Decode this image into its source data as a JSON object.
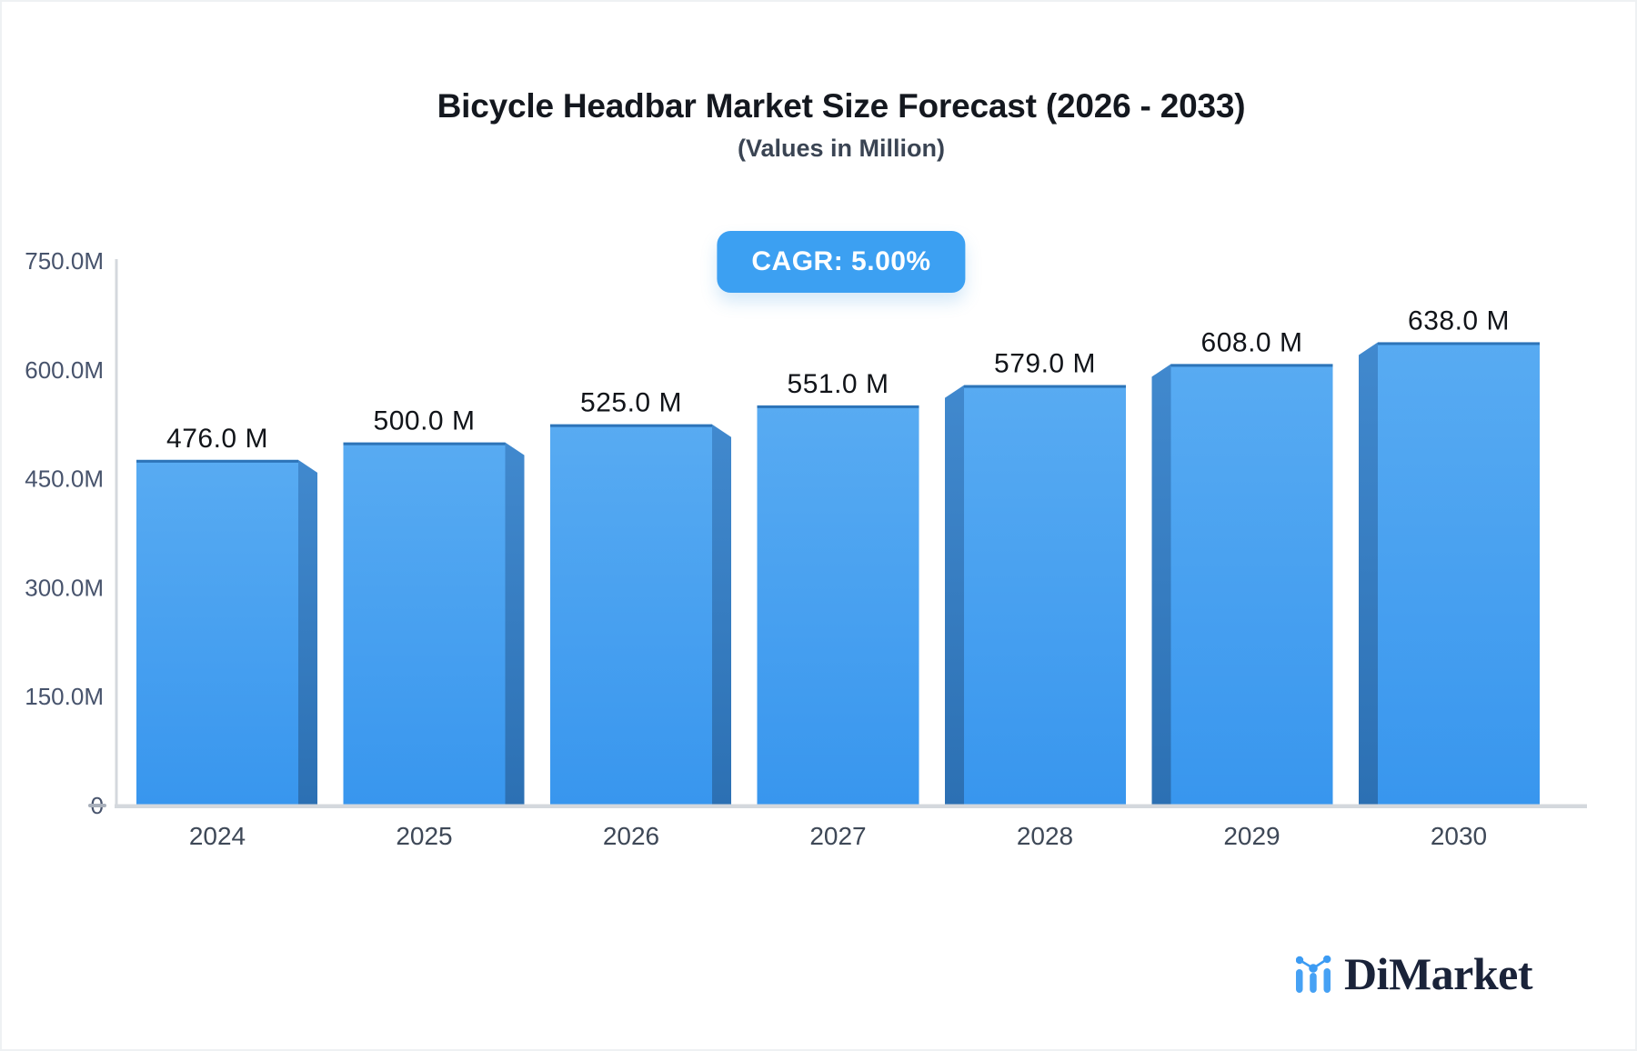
{
  "header": {
    "title": "Bicycle Headbar Market Size Forecast (2026 - 2033)",
    "subtitle": "(Values in Million)",
    "cagr_badge": "CAGR: 5.00%"
  },
  "chart_data": {
    "type": "bar",
    "title": "Bicycle Headbar Market Size Forecast (2026 - 2033)",
    "subtitle": "(Values in Million)",
    "cagr_percent": 5.0,
    "categories": [
      "2024",
      "2025",
      "2026",
      "2027",
      "2028",
      "2029",
      "2030"
    ],
    "values": [
      476.0,
      500.0,
      525.0,
      551.0,
      579.0,
      608.0,
      638.0
    ],
    "bar_labels": [
      "476.0 M",
      "500.0 M",
      "525.0 M",
      "551.0 M",
      "579.0 M",
      "608.0 M",
      "638.0 M"
    ],
    "xlabel": "",
    "ylabel": "",
    "ylim": [
      0,
      750
    ],
    "yticks": [
      {
        "value": 750,
        "label": "750.0M"
      },
      {
        "value": 600,
        "label": "600.0M"
      },
      {
        "value": 450,
        "label": "450.0M"
      },
      {
        "value": 300,
        "label": "300.0M"
      },
      {
        "value": 150,
        "label": "150.0M"
      },
      {
        "value": 0,
        "label": "0"
      }
    ],
    "grid": false,
    "legend": false,
    "style": "3d-perspective-bars",
    "colors": {
      "bar_top": "#58abf2",
      "bar_bottom": "#3896ee",
      "bar_edge": "#2d74b8",
      "side_top": "#4189ce",
      "side_bottom": "#2c70b3",
      "axis": "#d4d8dd",
      "zero_tick": "#a9b0bb",
      "badge_bg": "#3ca0f2"
    }
  },
  "footer": {
    "brand": "DiMarket",
    "logo_blue": "#46a1f4"
  }
}
